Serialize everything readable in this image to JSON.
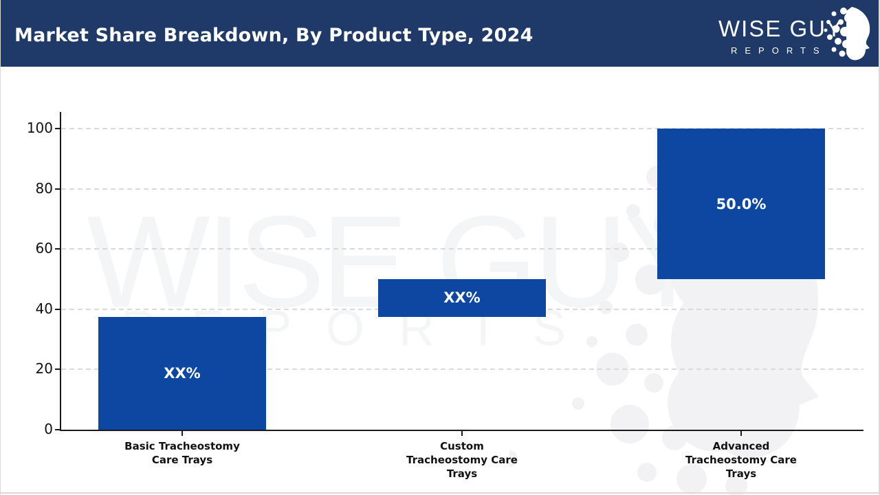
{
  "header": {
    "title": "Market Share Breakdown, By Product Type, 2024",
    "logo_line1": "WISE GUY",
    "logo_line2": "REPORTS"
  },
  "watermark": {
    "line1": "WISE GUY",
    "line2": "REPORTS"
  },
  "chart_data": {
    "type": "bar",
    "variant": "stacked-waterfall-percent",
    "title": "Market Share Breakdown, By Product Type, 2024",
    "categories": [
      "Basic Tracheostomy\nCare Trays",
      "Custom\nTracheostomy Care\nTrays",
      "Advanced\nTracheostomy Care\nTrays"
    ],
    "values": [
      37.5,
      12.5,
      50.0
    ],
    "segment_ranges": [
      [
        0,
        37.5
      ],
      [
        37.5,
        50.0
      ],
      [
        50.0,
        100.0
      ]
    ],
    "bar_labels": [
      "XX%",
      "XX%",
      "50.0%"
    ],
    "ylim": [
      0,
      100
    ],
    "yticks": [
      0,
      20,
      40,
      60,
      80,
      100
    ],
    "grid": "horizontal-dashed",
    "legend": "none",
    "colors": {
      "bar": "#0d47a1",
      "header_background": "#1f3968",
      "bar_label_text": "#ffffff",
      "gridline": "#d9d9d9"
    }
  }
}
